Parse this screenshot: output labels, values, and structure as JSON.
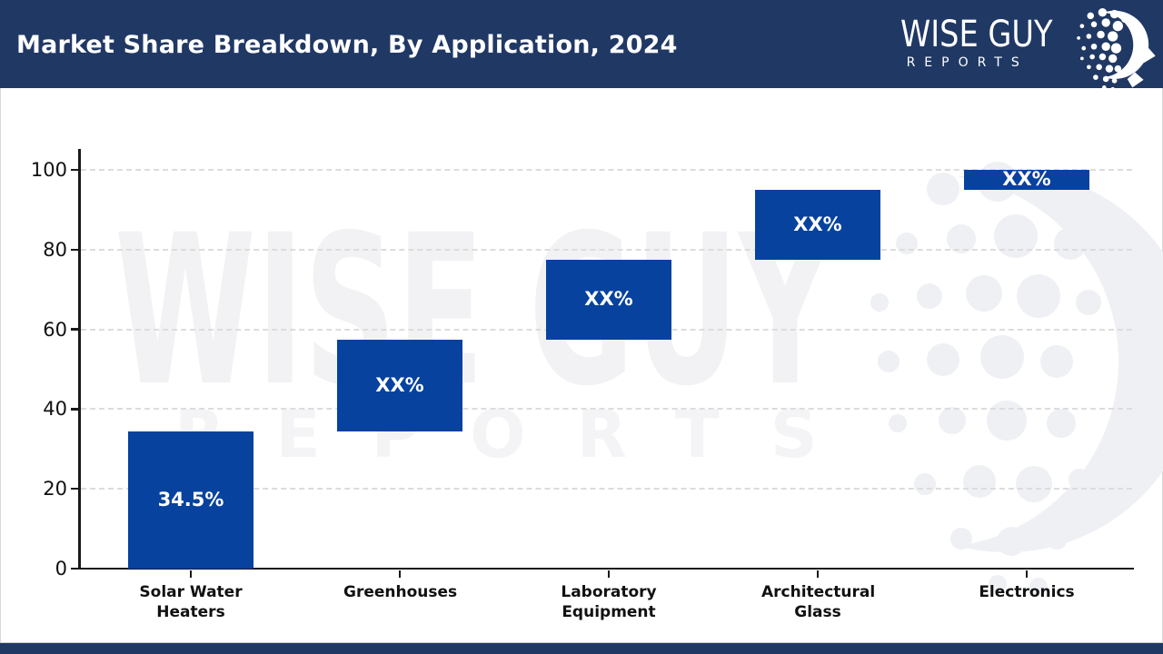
{
  "header": {
    "title": "Market Share Breakdown, By Application, 2024",
    "logo": {
      "primary": "WISE GUY",
      "secondary": "REPORTS"
    }
  },
  "watermark": {
    "primary": "WISE GUY",
    "secondary": "REPORTS"
  },
  "chart_data": {
    "type": "bar",
    "variant": "waterfall",
    "title": "Market Share Breakdown, By Application, 2024",
    "categories": [
      "Solar Water Heaters",
      "Greenhouses",
      "Laboratory Equipment",
      "Architectural Glass",
      "Electronics"
    ],
    "segments": [
      {
        "category": "Solar Water Heaters",
        "start": 0,
        "end": 34.5,
        "label": "34.5%"
      },
      {
        "category": "Greenhouses",
        "start": 34.5,
        "end": 57.5,
        "label": "XX%"
      },
      {
        "category": "Laboratory Equipment",
        "start": 57.5,
        "end": 77.5,
        "label": "XX%"
      },
      {
        "category": "Architectural Glass",
        "start": 77.5,
        "end": 95,
        "label": "XX%"
      },
      {
        "category": "Electronics",
        "start": 95,
        "end": 100,
        "label": "XX%"
      }
    ],
    "xlabel": "",
    "ylabel": "",
    "yticks": [
      0,
      20,
      40,
      60,
      80,
      100
    ],
    "ylim": [
      0,
      105
    ],
    "grid": "horizontal-dashed",
    "legend": "none",
    "bar_color": "#06429e"
  },
  "colors": {
    "header_bg": "#203864",
    "footer_bg": "#203864",
    "bar": "#06429e",
    "bar_label_text": "#ffffff",
    "title_text": "#ffffff",
    "axis": "#1a1a1a",
    "grid": "#dcdcdc",
    "background": "#ffffff"
  }
}
